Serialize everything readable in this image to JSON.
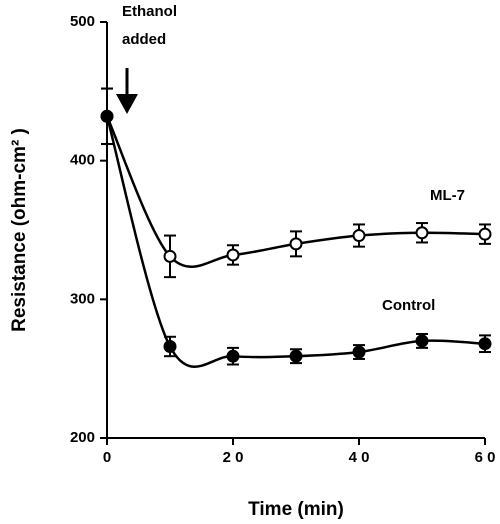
{
  "chart_data": {
    "type": "line",
    "ylabel": "Resistance  (ohm-cm² )",
    "xlabel": "Time   (min)",
    "annotation": [
      "Ethanol",
      "added"
    ],
    "x": [
      0,
      10,
      20,
      30,
      40,
      50,
      60
    ],
    "xlim": [
      0,
      60
    ],
    "xticks": [
      0,
      {
        "value": 20,
        "label": "2 0"
      },
      {
        "value": 40,
        "label": "4 0"
      },
      {
        "value": 60,
        "label": "6 0"
      }
    ],
    "ylim": [
      200,
      500
    ],
    "yticks": [
      200,
      300,
      400,
      500
    ],
    "series": [
      {
        "name": "ML-7",
        "color": "#000000",
        "marker": "open",
        "values": [
          432,
          331,
          332,
          340,
          346,
          348,
          347
        ],
        "errors": [
          20,
          15,
          7,
          9,
          8,
          7,
          7
        ]
      },
      {
        "name": "Control",
        "color": "#000000",
        "marker": "filled",
        "values": [
          432,
          266,
          259,
          259,
          262,
          270,
          268
        ],
        "errors": [
          20,
          7,
          6,
          5,
          5,
          5,
          6
        ]
      }
    ]
  }
}
